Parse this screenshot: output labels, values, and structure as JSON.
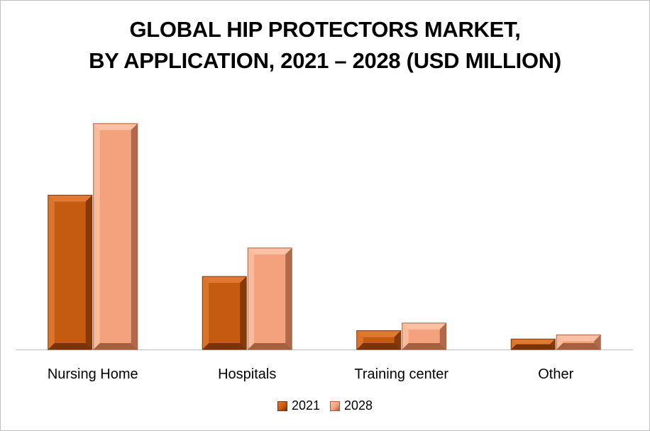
{
  "chart_data": {
    "type": "bar",
    "title_lines": [
      "GLOBAL HIP PROTECTORS MARKET,",
      "BY APPLICATION, 2021 – 2028 (USD MILLION)"
    ],
    "categories": [
      "Nursing Home",
      "Hospitals",
      "Training center",
      "Other"
    ],
    "series": [
      {
        "name": "2021",
        "values": [
          222,
          105,
          27,
          15
        ],
        "color": "#c55a11",
        "light": "#e07a32",
        "dark": "#7a3407"
      },
      {
        "name": "2028",
        "values": [
          325,
          146,
          38,
          21
        ],
        "color": "#f4a27e",
        "light": "#fbc1a4",
        "dark": "#a5603f"
      }
    ],
    "ylim": [
      0,
      360
    ],
    "grid": false,
    "legend_position": "bottom"
  }
}
